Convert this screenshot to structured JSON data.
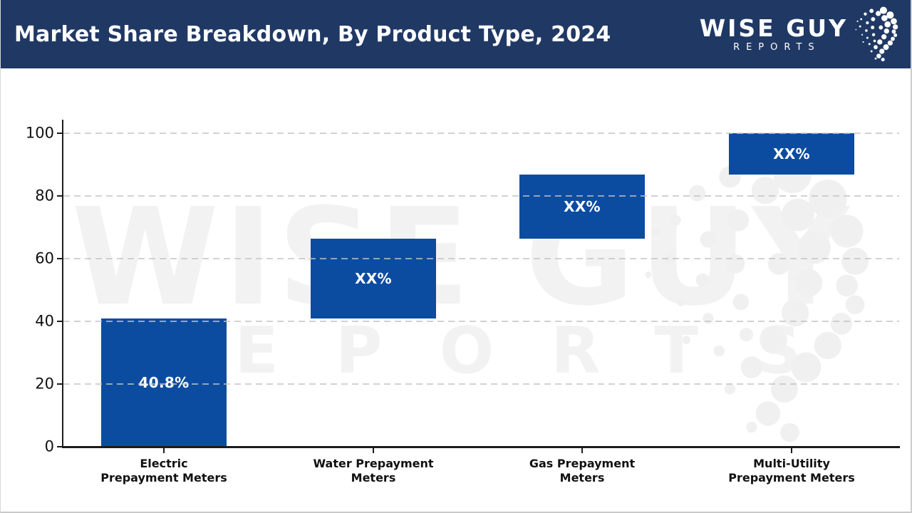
{
  "header": {
    "title": "Market Share Breakdown, By Product Type, 2024",
    "bg_color": "#203864"
  },
  "logo": {
    "line1": "WISE GUY",
    "line2": "REPORTS",
    "icon": "dotted-head-profile"
  },
  "watermark": {
    "line1": "WISE GUY",
    "line2": "REPORTS",
    "icon": "dotted-head-profile"
  },
  "chart_data": {
    "type": "bar",
    "subtype": "waterfall",
    "title": "Market Share Breakdown, By Product Type, 2024",
    "unit": "%",
    "categories": [
      "Electric Prepayment Meters",
      "Water Prepayment Meters",
      "Gas Prepayment Meters",
      "Multi-Utility Prepayment Meters"
    ],
    "bars": [
      {
        "category_lines": [
          "Electric",
          "Prepayment Meters"
        ],
        "start": 0,
        "end": 40.8,
        "label": "40.8%"
      },
      {
        "category_lines": [
          "Water Prepayment",
          "Meters"
        ],
        "start": 40.8,
        "end": 66.4,
        "label": "XX%"
      },
      {
        "category_lines": [
          "Gas Prepayment",
          "Meters"
        ],
        "start": 66.4,
        "end": 86.8,
        "label": "XX%"
      },
      {
        "category_lines": [
          "Multi-Utility",
          "Prepayment Meters"
        ],
        "start": 86.8,
        "end": 100,
        "label": "XX%"
      }
    ],
    "yticks": [
      0,
      20,
      40,
      60,
      80,
      100
    ],
    "ylim": [
      0,
      105
    ],
    "xlabel": "",
    "ylabel": "",
    "grid": "horizontal-dashed",
    "legend": "none",
    "bar_color": "#0C4CA0",
    "bar_label_color": "#ffffff",
    "axis_color": "#1c1c1c",
    "grid_color": "#c9c9c9"
  }
}
